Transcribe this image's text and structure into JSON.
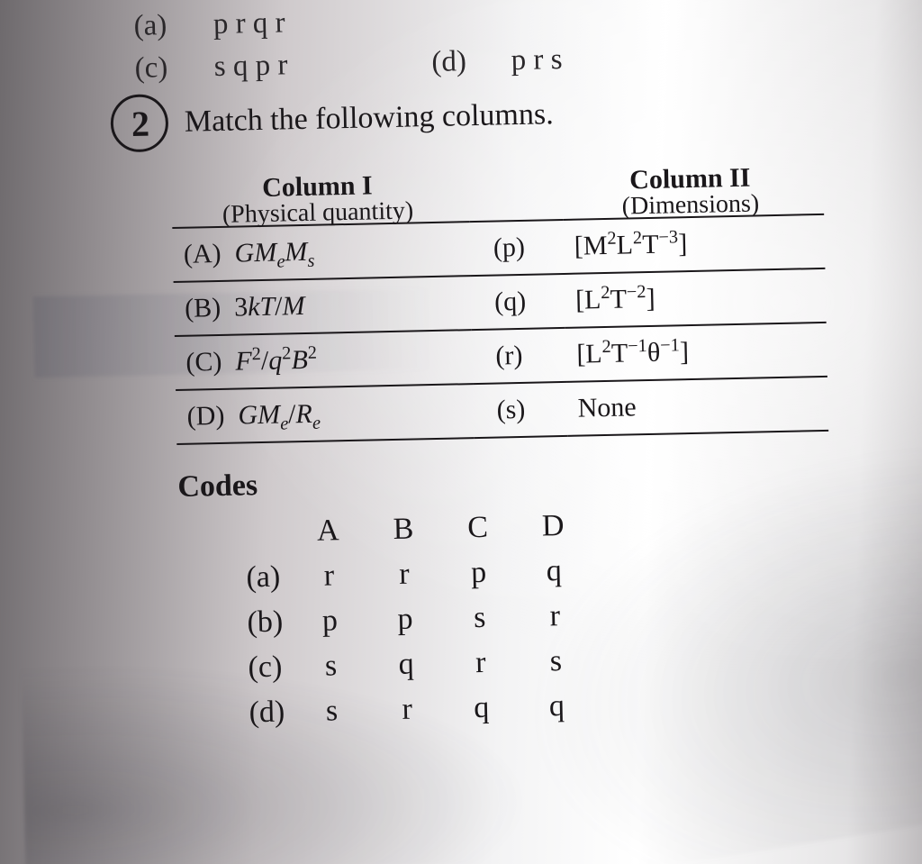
{
  "top_partial": {
    "a_lead": "(a)",
    "a_letters": "p   r   q   r",
    "c_lead": "(c)",
    "c_letters": "s   q   p   r",
    "d_lead": "(d)",
    "d_letters": "p   r   s"
  },
  "question": {
    "number": "2",
    "stem": "Match the following columns.",
    "table": {
      "col1_title": "Column I",
      "col1_sub": "(Physical quantity)",
      "col2_title": "Column II",
      "col2_sub": "(Dimensions)",
      "rows": [
        {
          "l_label": "(A)",
          "l_html": "<span class='it'>GM</span><span class='sub it'>e</span><span class='it'>M</span><span class='sub it'>s</span>",
          "r_label": "(p)",
          "r_html": "[M<span class='sup'>2</span>L<span class='sup'>2</span>T<span class='sup'>−3</span>]"
        },
        {
          "l_label": "(B)",
          "l_html": "3<span class='it'>kT</span>/<span class='it'>M</span>",
          "r_label": "(q)",
          "r_html": "[L<span class='sup'>2</span>T<span class='sup'>−2</span>]"
        },
        {
          "l_label": "(C)",
          "l_html": "<span class='it'>F</span><span class='sup'>2</span>/<span class='it'>q</span><span class='sup'>2</span><span class='it'>B</span><span class='sup'>2</span>",
          "r_label": "(r)",
          "r_html": "[L<span class='sup'>2</span>T<span class='sup'>−1</span>θ<span class='sup'>−1</span>]"
        },
        {
          "l_label": "(D)",
          "l_html": "<span class='it'>GM</span><span class='sub it'>e</span>/<span class='it'>R</span><span class='sub it'>e</span>",
          "r_label": "(s)",
          "r_html": "None"
        }
      ]
    },
    "codes": {
      "label": "Codes",
      "headers": [
        "A",
        "B",
        "C",
        "D"
      ],
      "options": [
        {
          "opt": "(a)",
          "vals": [
            "r",
            "r",
            "p",
            "q"
          ]
        },
        {
          "opt": "(b)",
          "vals": [
            "p",
            "p",
            "s",
            "r"
          ]
        },
        {
          "opt": "(c)",
          "vals": [
            "s",
            "q",
            "r",
            "s"
          ]
        },
        {
          "opt": "(d)",
          "vals": [
            "s",
            "r",
            "q",
            "q"
          ]
        }
      ]
    }
  },
  "style": {
    "text_color": "#1a171a",
    "rule_color": "#1a171a",
    "base_font_pt": 30,
    "title_font_pt": 34
  }
}
